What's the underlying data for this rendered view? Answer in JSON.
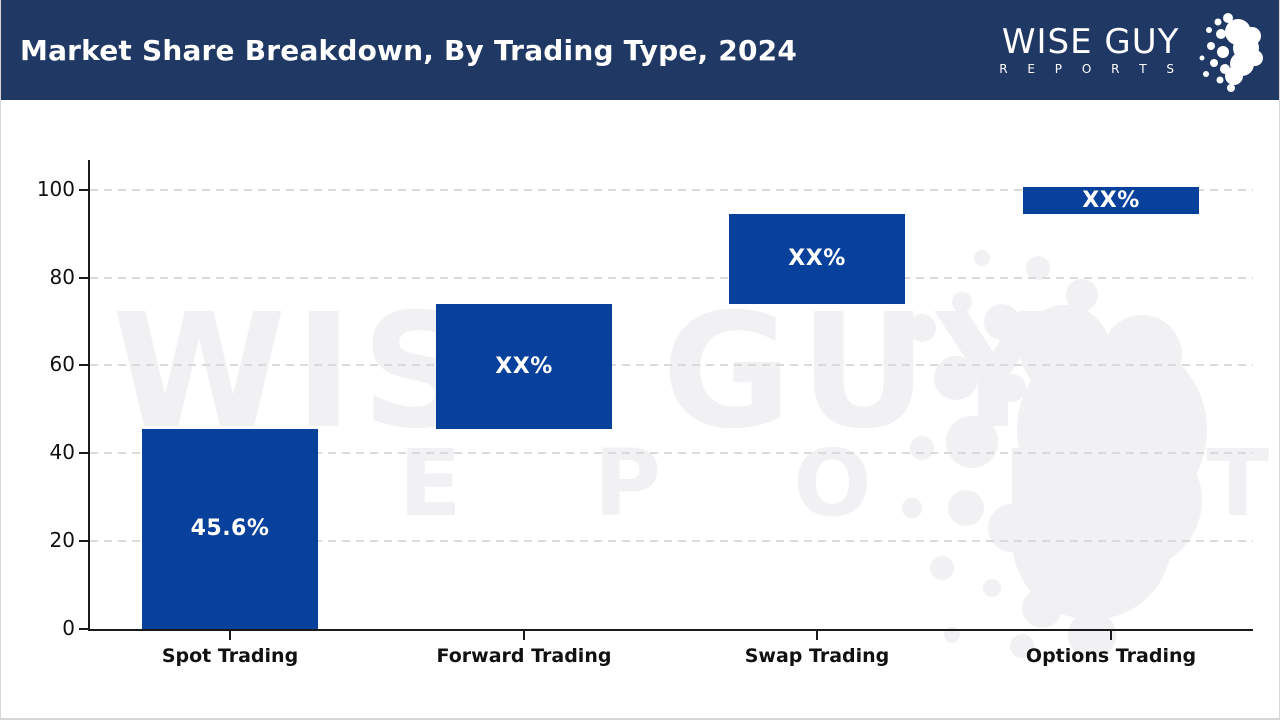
{
  "header": {
    "title": "Market Share Breakdown, By Trading Type, 2024",
    "logo": {
      "line1": "WISE GUY",
      "line2": "R E P O R T S",
      "face_icon": "dotted-head-profile"
    }
  },
  "watermark": {
    "line1": "WISE GUY",
    "line2": "R E P O R T S",
    "face_icon": "dotted-head-profile"
  },
  "colors": {
    "header_bg": "#1f3864",
    "bar": "#08419c",
    "grid": "#dadada",
    "axis": "#1a1a1a",
    "bar_label": "#ffffff",
    "watermark": "#f1f1f3"
  },
  "chart_data": {
    "type": "bar",
    "subtype": "waterfall",
    "title": "Market Share Breakdown, By Trading Type, 2024",
    "xlabel": "",
    "ylabel": "",
    "grid": "dashed-horizontal",
    "legend": "none",
    "ylim": [
      0,
      105.5
    ],
    "categories": [
      "Spot Trading",
      "Forward Trading",
      "Swap Trading",
      "Options Trading"
    ],
    "yticks": [
      {
        "value": 0,
        "label": "0"
      },
      {
        "value": 20,
        "label": "20"
      },
      {
        "value": 40,
        "label": "40"
      },
      {
        "value": 60,
        "label": "60"
      },
      {
        "value": 80,
        "label": "80"
      },
      {
        "value": 100,
        "label": "100"
      }
    ],
    "segments": [
      {
        "category": "Spot Trading",
        "start": 0,
        "end": 45.6,
        "value": 45.6,
        "label": "45.6%"
      },
      {
        "category": "Forward Trading",
        "start": 45.6,
        "end": 74.0,
        "value": 28.4,
        "label": "XX%"
      },
      {
        "category": "Swap Trading",
        "start": 74.0,
        "end": 94.5,
        "value": 20.5,
        "label": "XX%"
      },
      {
        "category": "Options Trading",
        "start": 94.5,
        "end": 100.6,
        "value": 6.1,
        "label": "XX%"
      }
    ]
  }
}
